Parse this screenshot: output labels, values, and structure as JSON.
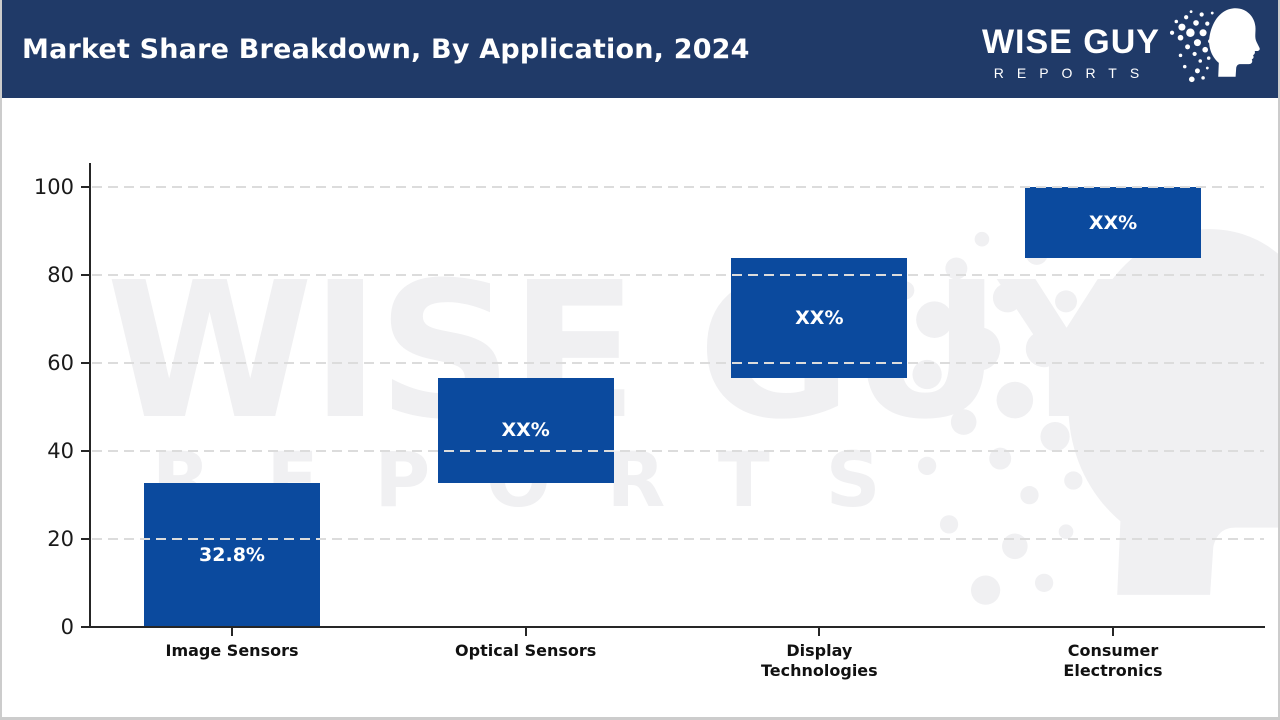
{
  "header": {
    "title": "Market Share Breakdown, By Application, 2024",
    "logo_line1": "WISE GUY",
    "logo_line2": "REPORTS"
  },
  "watermark": {
    "line1": "WISE GUY",
    "line2": "REPORTS"
  },
  "colors": {
    "header_bg": "#203a68",
    "bar": "#0b4a9e",
    "watermark": "#f0f0f2",
    "grid": "#dcdcdc",
    "axis": "#262626"
  },
  "chart_data": {
    "type": "bar",
    "subtype": "waterfall",
    "title": "Market Share Breakdown, By Application, 2024",
    "categories": [
      "Image Sensors",
      "Optical Sensors",
      "Display Technologies",
      "Consumer Electronics"
    ],
    "category_lines": [
      [
        "Image Sensors"
      ],
      [
        "Optical Sensors"
      ],
      [
        "Display",
        "Technologies"
      ],
      [
        "Consumer",
        "Electronics"
      ]
    ],
    "segments": [
      {
        "category": "Image Sensors",
        "start": 0,
        "end": 32.8,
        "label": "32.8%"
      },
      {
        "category": "Optical Sensors",
        "start": 32.8,
        "end": 56.6,
        "label": "XX%"
      },
      {
        "category": "Display Technologies",
        "start": 56.6,
        "end": 83.8,
        "label": "XX%"
      },
      {
        "category": "Consumer Electronics",
        "start": 83.8,
        "end": 100,
        "label": "XX%"
      }
    ],
    "xlabel": "",
    "ylabel": "",
    "ylim": [
      0,
      100
    ],
    "yticks": [
      0,
      20,
      40,
      60,
      80,
      100
    ],
    "grid": true,
    "grid_style": "dashed",
    "legend": "none",
    "value_label_color": "#ffffff"
  }
}
